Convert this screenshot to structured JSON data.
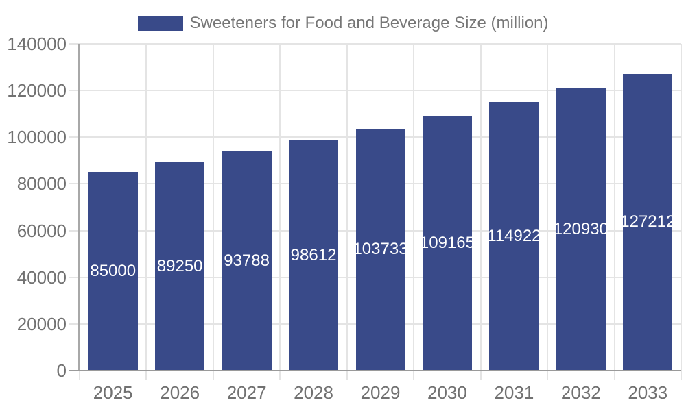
{
  "chart_data": {
    "type": "bar",
    "title": "Sweeteners for Food and Beverage Size (million)",
    "legend_position": "top",
    "legend_entries": [
      "Sweeteners for Food and Beverage Size (million)"
    ],
    "categories": [
      "2025",
      "2026",
      "2027",
      "2028",
      "2029",
      "2030",
      "2031",
      "2032",
      "2033"
    ],
    "series": [
      {
        "name": "Sweeteners for Food and Beverage Size (million)",
        "values": [
          85000,
          89250,
          93788,
          98612,
          103733,
          109165,
          114922,
          120930,
          127212
        ]
      }
    ],
    "bar_value_labels": [
      85000,
      89250,
      93788,
      98612,
      103733,
      109165,
      114922,
      120930,
      127212
    ],
    "xlabel": "",
    "ylabel": "",
    "ylim": [
      0,
      140000
    ],
    "yticks": [
      0,
      20000,
      40000,
      60000,
      80000,
      100000,
      120000,
      140000
    ],
    "grid": true,
    "value_label_position": "inside-center",
    "colors": {
      "bar": "#394A89",
      "bar_label": "#FFFFFF",
      "axis_text": "#717171",
      "legend_text": "#767676",
      "gridline": "#E4E4E4",
      "x_axis_line": "#9A9A9A",
      "y_axis_line": "#A8A8A8"
    }
  }
}
